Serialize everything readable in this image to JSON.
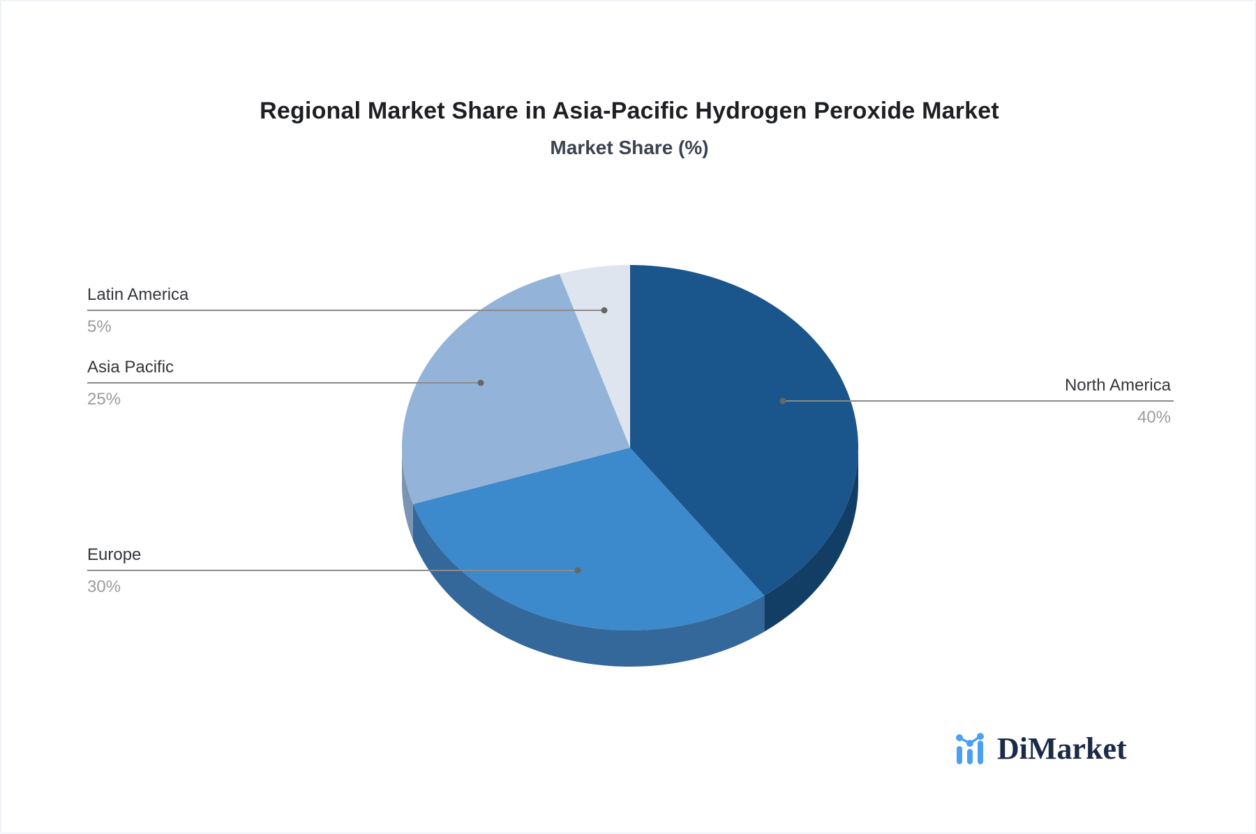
{
  "chart": {
    "title": "Regional Market Share in Asia-Pacific Hydrogen Peroxide Market",
    "subtitle": "Market Share (%)"
  },
  "chart_data": {
    "type": "pie",
    "style": "3d",
    "title": "Regional Market Share in Asia-Pacific Hydrogen Peroxide Market",
    "subtitle": "Market Share (%)",
    "unit": "%",
    "start_angle_deg": -90,
    "direction": "clockwise",
    "legend": "none",
    "slices": [
      {
        "label": "North America",
        "value": 40,
        "display_value": "40%",
        "color": "#1A568C",
        "side_color": "#123E66",
        "label_side": "right"
      },
      {
        "label": "Europe",
        "value": 30,
        "display_value": "30%",
        "color": "#3C89CB",
        "side_color": "#34689A",
        "label_side": "left"
      },
      {
        "label": "Asia Pacific",
        "value": 25,
        "display_value": "25%",
        "color": "#93B4D8",
        "side_color": "#7A94B4",
        "label_side": "left"
      },
      {
        "label": "Latin America",
        "value": 5,
        "display_value": "5%",
        "color": "#DFE5EF",
        "side_color": "#C2CCDA",
        "label_side": "left"
      }
    ],
    "leader_line_color": "#8A8A8A",
    "leader_dot_color": "#666666",
    "label_color": "#33363B",
    "value_color": "#9B9B9B"
  },
  "logo": {
    "text": "DiMarket",
    "icon": "bar-chart-trend-icon",
    "text_color": "#1B2A47",
    "icon_color": "#4BA0F4"
  }
}
